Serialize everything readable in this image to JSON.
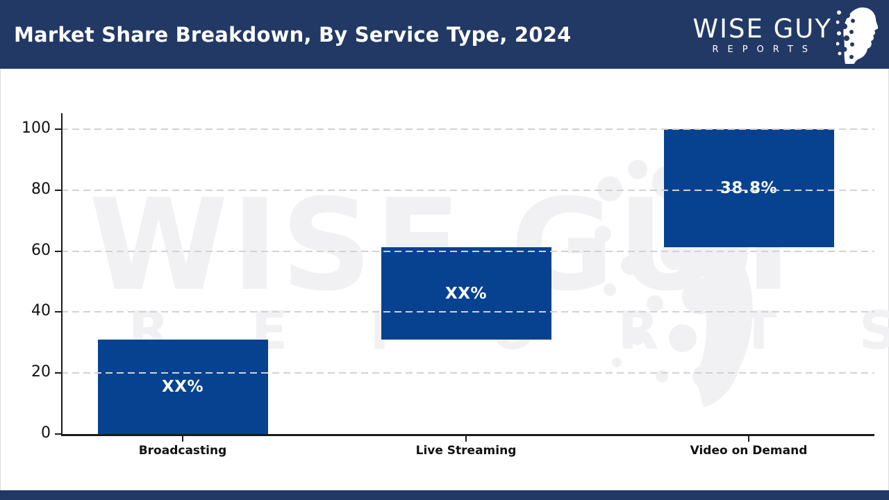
{
  "header": {
    "title": "Market Share Breakdown, By Service Type, 2024",
    "logo": {
      "line1": "WISE GUY",
      "line2": "REPORTS"
    }
  },
  "watermark": {
    "line1": "WISE GUY",
    "line2": "R E P O R T S"
  },
  "chart_data": {
    "type": "bar",
    "variant": "waterfall",
    "title": "Market Share Breakdown, By Service Type, 2024",
    "categories": [
      "Broadcasting",
      "Live Streaming",
      "Video on Demand"
    ],
    "series": [
      {
        "name": "Market Share",
        "segments": [
          {
            "category": "Broadcasting",
            "start": 0,
            "end": 31,
            "value_label": "XX%"
          },
          {
            "category": "Live Streaming",
            "start": 31,
            "end": 61.2,
            "value_label": "XX%"
          },
          {
            "category": "Video on Demand",
            "start": 61.2,
            "end": 100,
            "value_label": "38.8%"
          }
        ]
      }
    ],
    "xlabel": "",
    "ylabel": "",
    "ylim": [
      0,
      107
    ],
    "yticks": [
      0,
      20,
      40,
      60,
      80,
      100
    ],
    "grid": "horizontal-dashed",
    "grid_above_bars": true,
    "legend": "none",
    "bar_color": "#06428F",
    "bar_label_color": "#ffffff"
  },
  "colors": {
    "header_bg": "#223966",
    "footer_bg": "#223966",
    "title_text": "#ffffff",
    "bar": "#06428F",
    "grid": "#d2d2d2",
    "axis": "#1a1a1a",
    "watermark": "#f1f1f4",
    "page_border": "#dcdcdc"
  }
}
